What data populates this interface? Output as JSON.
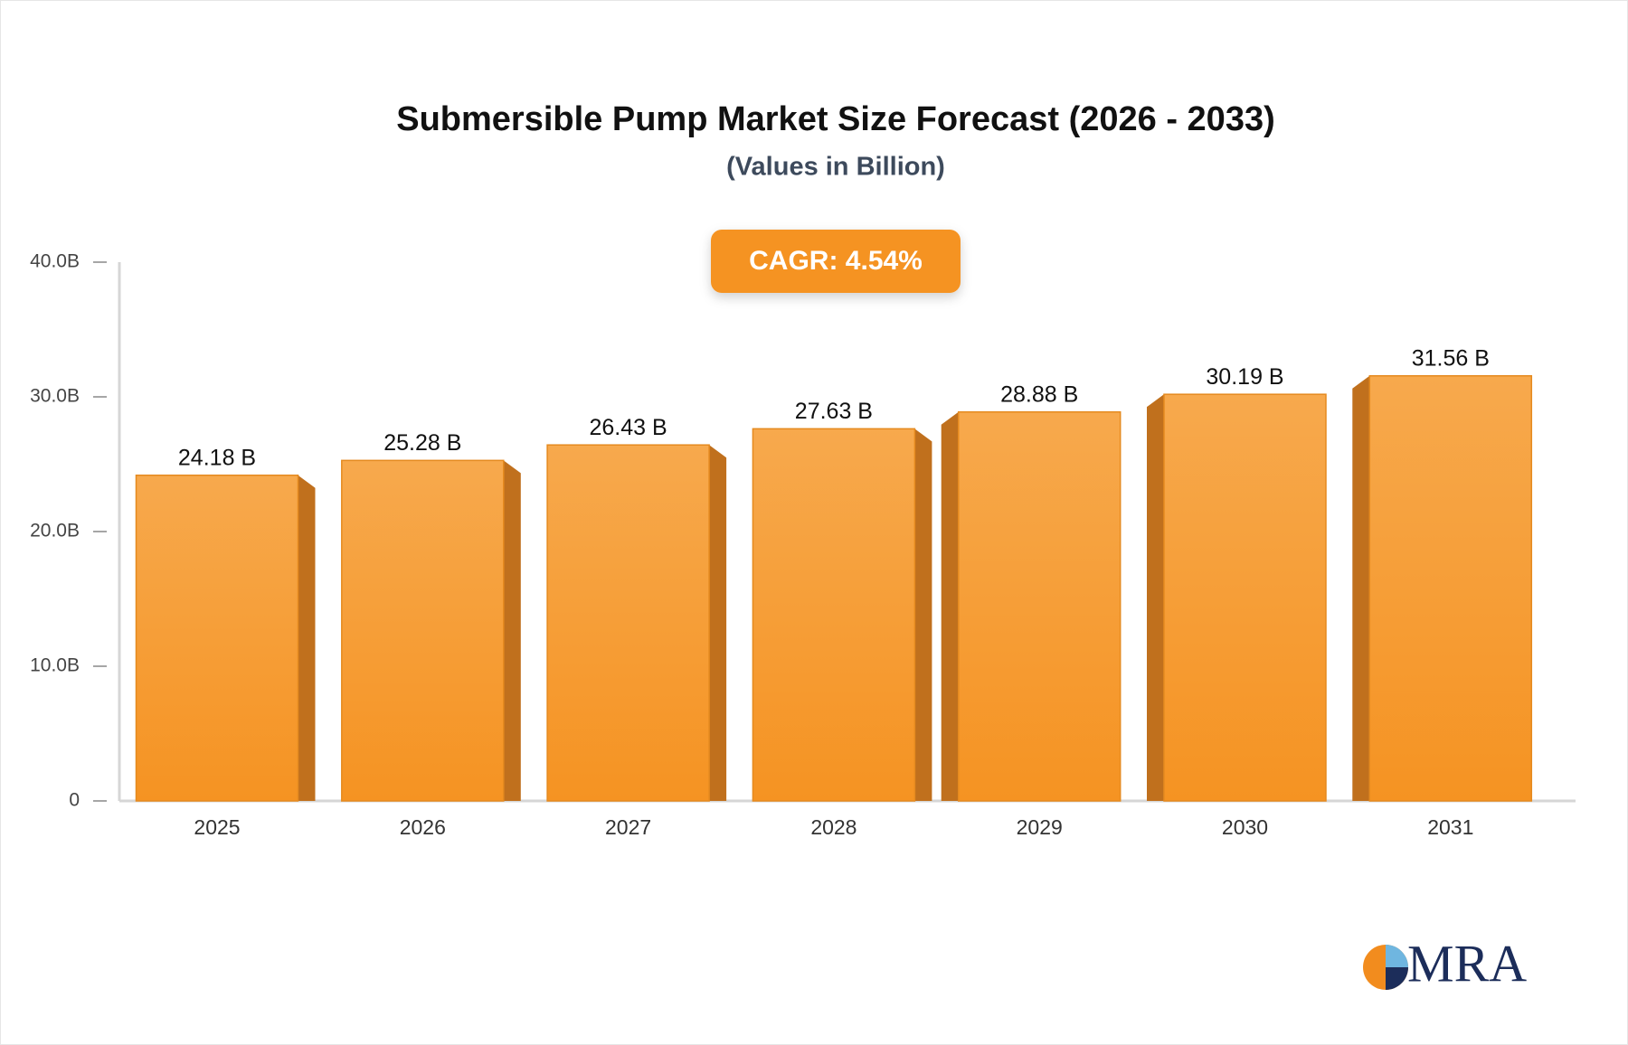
{
  "chart_data": {
    "type": "bar",
    "title": "Submersible Pump Market Size Forecast (2026 - 2033)",
    "subtitle": "(Values in Billion)",
    "annotation": "CAGR: 4.54%",
    "logo_text": "MRA",
    "categories": [
      "2025",
      "2026",
      "2027",
      "2028",
      "2029",
      "2030",
      "2031"
    ],
    "values": [
      24.18,
      25.28,
      26.43,
      27.63,
      28.88,
      30.19,
      31.56
    ],
    "value_labels": [
      "24.18 B",
      "25.28 B",
      "26.43 B",
      "27.63 B",
      "28.88 B",
      "30.19 B",
      "31.56 B"
    ],
    "color": "#f69a2e",
    "ylim": [
      0,
      40
    ],
    "yticks": [
      0,
      {
        "value": 10,
        "label": "10.0B"
      },
      {
        "value": 20,
        "label": "20.0B"
      },
      {
        "value": 30,
        "label": "30.0B"
      },
      {
        "value": 40,
        "label": "40.0B"
      }
    ],
    "grid": false
  }
}
